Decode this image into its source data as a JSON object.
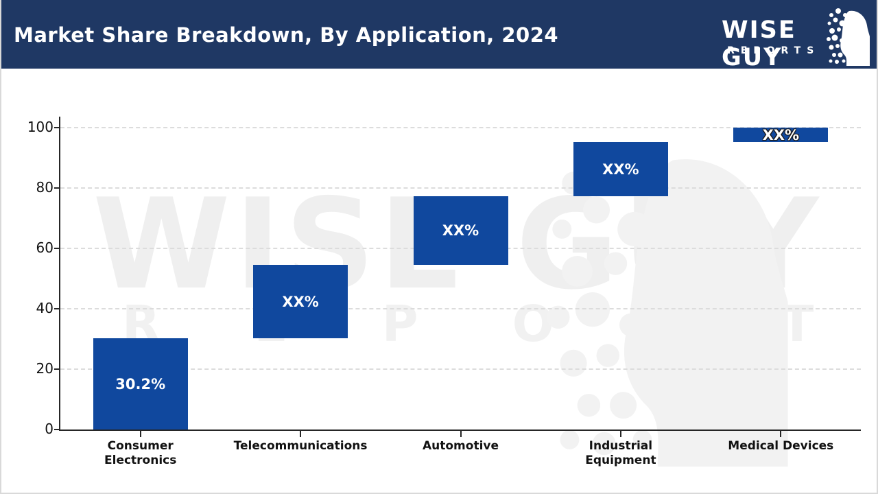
{
  "header": {
    "title": "Market Share Breakdown, By Application, 2024",
    "brand": {
      "line1": "WISE GUY",
      "line2": "REPORTS"
    }
  },
  "watermark": {
    "line1": "WISE GUY",
    "line2": "REPORTS"
  },
  "colors": {
    "header_bg": "#1f3864",
    "bar": "#10489e",
    "axis": "#262626",
    "gridline": "#dcdcdc",
    "bar_label": "#ffffff",
    "tick_label": "#111111"
  },
  "chart_data": {
    "type": "bar",
    "subtype": "waterfall",
    "title": "Market Share Breakdown, By Application, 2024",
    "categories": [
      "Consumer Electronics",
      "Telecommunications",
      "Automotive",
      "Industrial Equipment",
      "Medical Devices"
    ],
    "category_lines": [
      [
        "Consumer",
        "Electronics"
      ],
      [
        "Telecommunications"
      ],
      [
        "Automotive"
      ],
      [
        "Industrial",
        "Equipment"
      ],
      [
        "Medical Devices"
      ]
    ],
    "segments": [
      {
        "category": "Consumer Electronics",
        "start": 0,
        "end": 30.2,
        "label": "30.2%"
      },
      {
        "category": "Telecommunications",
        "start": 30.2,
        "end": 54.5,
        "label": "XX%"
      },
      {
        "category": "Automotive",
        "start": 54.5,
        "end": 77.3,
        "label": "XX%"
      },
      {
        "category": "Industrial Equipment",
        "start": 77.3,
        "end": 95.2,
        "label": "XX%"
      },
      {
        "category": "Medical Devices",
        "start": 95.2,
        "end": 100,
        "label": "XX%"
      }
    ],
    "ylim": [
      0,
      100
    ],
    "yticks": [
      0,
      20,
      40,
      60,
      80,
      100
    ],
    "grid": "dashed-horizontal",
    "legend": "none"
  }
}
